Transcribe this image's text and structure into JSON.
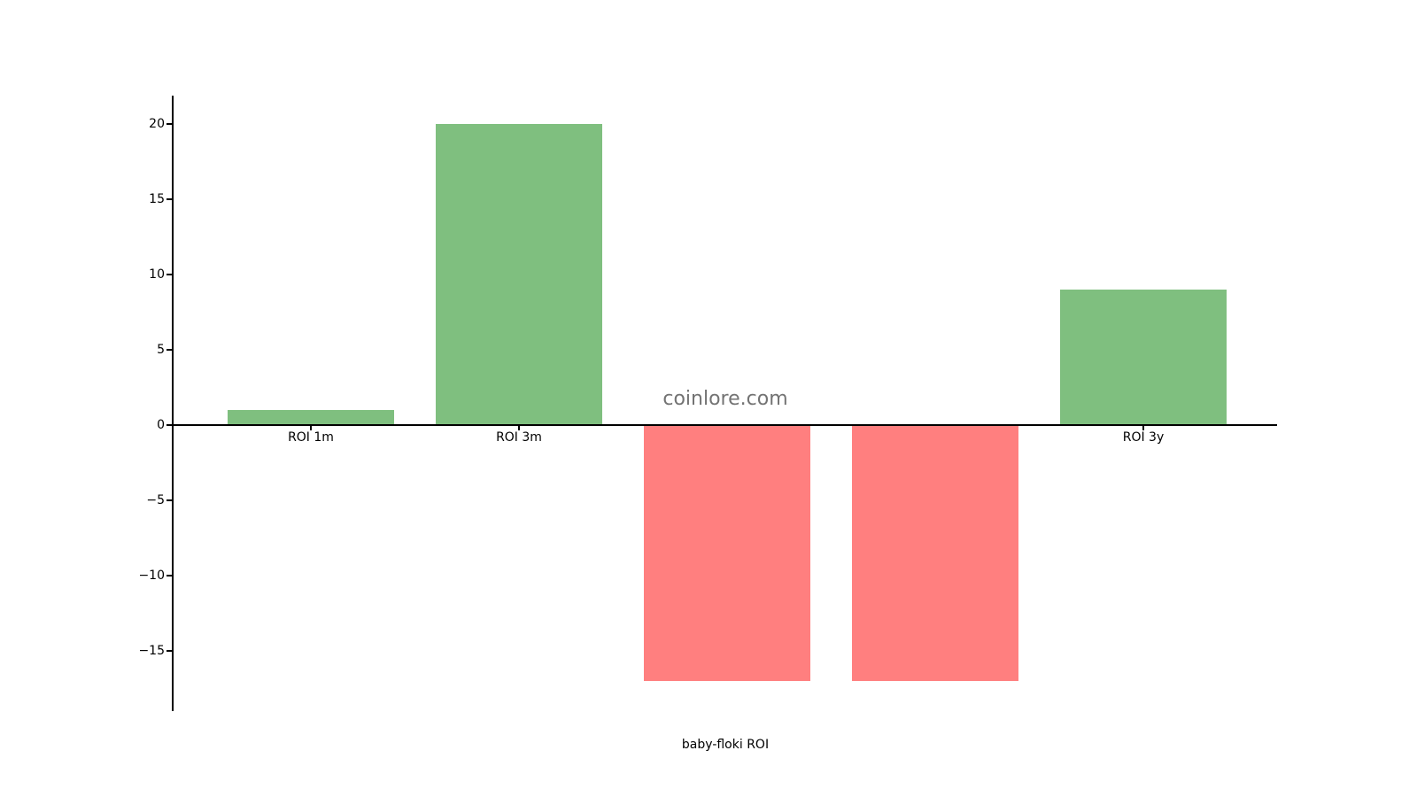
{
  "chart_data": {
    "type": "bar",
    "title": "baby-floki ROI",
    "watermark": "coinlore.com",
    "categories": [
      "ROI 1m",
      "ROI 3m",
      "",
      "",
      "ROI 3y"
    ],
    "values": [
      1,
      20,
      -17,
      -17,
      9
    ],
    "positive_color": "#7fbf7f",
    "negative_color": "#ff7f7f",
    "yticks": [
      20,
      15,
      10,
      5,
      0,
      -5,
      -10,
      -15
    ],
    "ylim": [
      -19,
      22
    ],
    "xlabel": "",
    "ylabel": "",
    "grid": false,
    "legend": false,
    "axis_color": "#000000",
    "tick_label_color": "#000000",
    "watermark_color": "#737373",
    "background_color": "#ffffff"
  }
}
